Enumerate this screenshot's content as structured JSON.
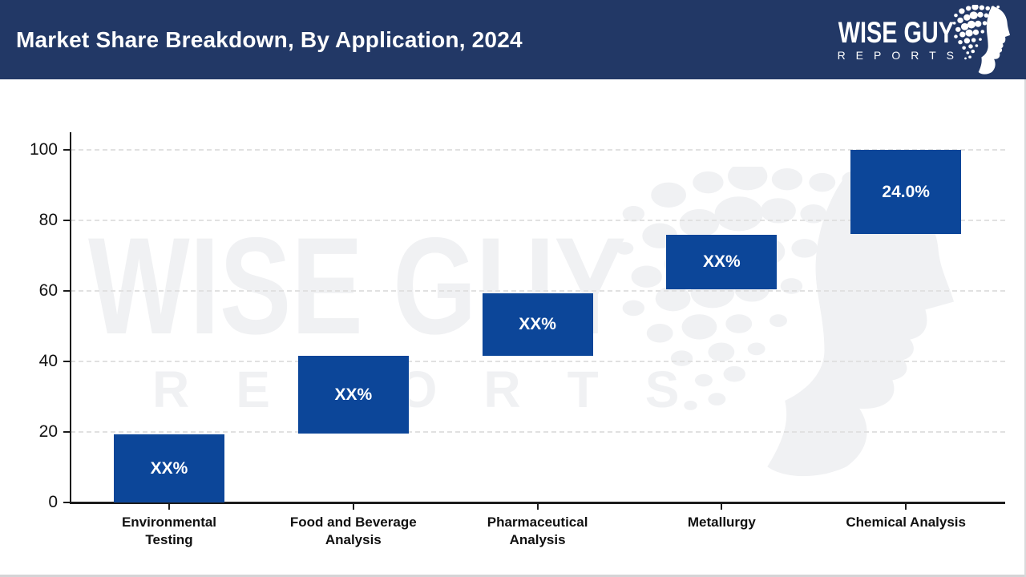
{
  "header": {
    "title": "Market Share Breakdown, By Application, 2024",
    "logo": {
      "line1": "WISE GUY",
      "line2": "REPORTS"
    }
  },
  "watermark": {
    "line1": "WISE GUY",
    "line2": "REPORTS"
  },
  "chart_data": {
    "type": "bar",
    "subtype": "waterfall-segments",
    "title": "Market Share Breakdown, By Application, 2024",
    "categories": [
      "Environmental\nTesting",
      "Food and Beverage\nAnalysis",
      "Pharmaceutical\nAnalysis",
      "Metallurgy",
      "Chemical Analysis"
    ],
    "segments": [
      {
        "category": "Environmental Testing",
        "start": 0,
        "end": 19.3,
        "label": "XX%"
      },
      {
        "category": "Food and Beverage Analysis",
        "start": 19.5,
        "end": 41.6,
        "label": "XX%"
      },
      {
        "category": "Pharmaceutical Analysis",
        "start": 41.6,
        "end": 59.3,
        "label": "XX%"
      },
      {
        "category": "Metallurgy",
        "start": 60.5,
        "end": 75.9,
        "label": "XX%"
      },
      {
        "category": "Chemical Analysis",
        "start": 76.1,
        "end": 100.0,
        "label": "24.0%"
      }
    ],
    "yticks": [
      0,
      20,
      40,
      60,
      80,
      100
    ],
    "ylim": [
      0,
      105
    ],
    "xlabel": "",
    "ylabel": "",
    "grid": "dashed-horizontal",
    "legend": "none",
    "colors": {
      "bar": "#0c4699",
      "bar_label": "#ffffff",
      "header_bg": "#223866",
      "gridline": "#e1e1e1",
      "axis": "#1c1c1c",
      "watermark": "#f0f1f3"
    }
  }
}
